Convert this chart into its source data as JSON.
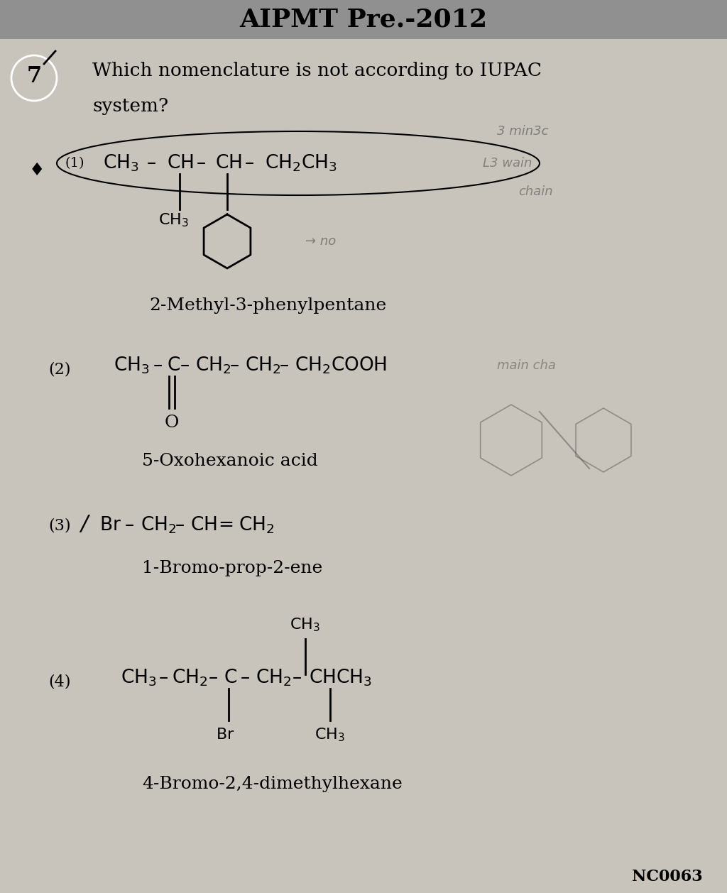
{
  "title": "AIPMT Pre.-2012",
  "title_bg": "#888888",
  "bg_color": "#c8c4bc",
  "text_color": "#111111",
  "question_text_1": "Which nomenclature is not according to IUPAC",
  "question_text_2": "system?",
  "footer": "NC0063",
  "annot_1": "3 min3c",
  "annot_2": "L3 wain",
  "annot_3": "chain",
  "annot_4": "→ no",
  "annot_5": "main cha"
}
